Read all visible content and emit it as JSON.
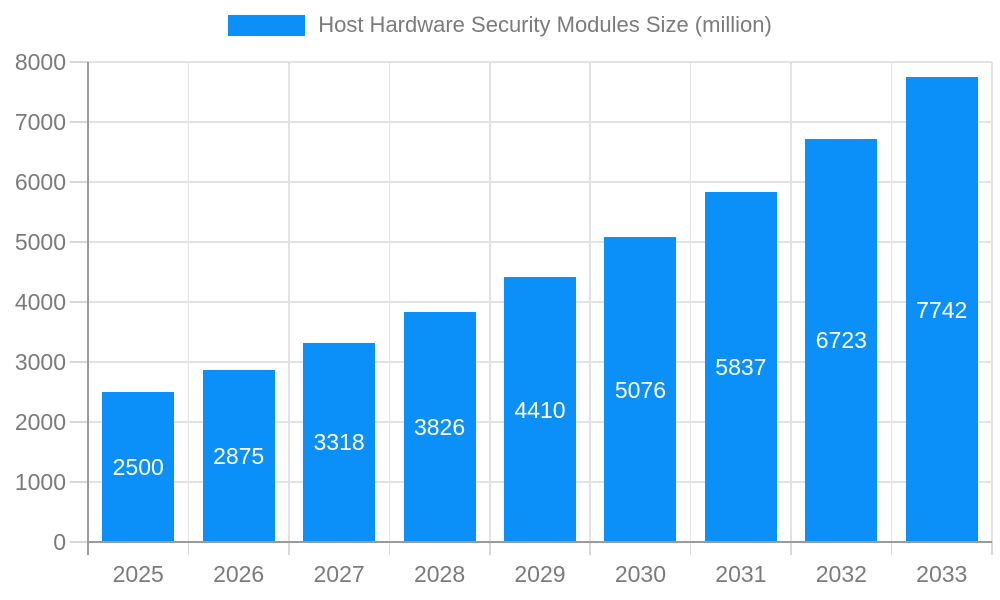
{
  "chart_data": {
    "type": "bar",
    "title": "Host Hardware Security Modules Size (million)",
    "categories": [
      "2025",
      "2026",
      "2027",
      "2028",
      "2029",
      "2030",
      "2031",
      "2032",
      "2033"
    ],
    "values": [
      2500,
      2875,
      3318,
      3826,
      4410,
      5076,
      5837,
      6723,
      7742
    ],
    "yticks": [
      0,
      1000,
      2000,
      3000,
      4000,
      5000,
      6000,
      7000,
      8000
    ],
    "ylim": [
      0,
      8000
    ],
    "xlabel": "",
    "ylabel": "",
    "legend_position": "top",
    "grid": true,
    "value_labels": "inside-center",
    "colors": {
      "bar": "#0a90f8",
      "axis_text": "#7b7b7b",
      "grid_line": "#e3e3e3",
      "tick_line": "#d8d8d8",
      "axis_line": "#9a9a9a",
      "value_label": "#ffffff",
      "background": "#ffffff"
    }
  }
}
